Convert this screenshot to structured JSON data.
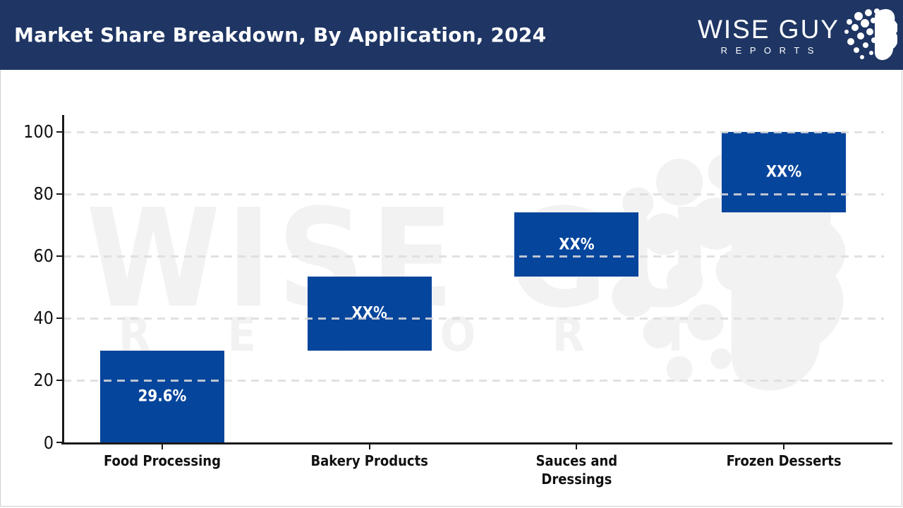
{
  "header": {
    "title": "Market Share Breakdown, By Application, 2024",
    "logo": {
      "brand": "WISE GUY",
      "tagline": "R E P O R T S"
    }
  },
  "watermark": {
    "brand": "WISE GUY",
    "tagline": "R E P O R T S"
  },
  "colors": {
    "header_bg": "#1f3664",
    "bar": "#05459c",
    "bar_label": "#ffffff",
    "axis": "#1a1a1a",
    "tick_label": "#111111",
    "grid": "#dcdcdc",
    "watermark": "#f2f2f2",
    "panel_border": "#cfcfcf"
  },
  "chart_data": {
    "type": "bar",
    "subtype": "floating-waterfall",
    "title": "Market Share Breakdown, By Application, 2024",
    "categories": [
      "Food Processing",
      "Bakery Products",
      "Sauces and Dressings",
      "Frozen Desserts"
    ],
    "series": [
      {
        "name": "Market share (%)",
        "segments": [
          {
            "category": "Food Processing",
            "start": 0,
            "end": 29.6,
            "label": "29.6%"
          },
          {
            "category": "Bakery Products",
            "start": 29.6,
            "end": 53.3,
            "label": "XX%"
          },
          {
            "category": "Sauces and Dressings",
            "start": 53.3,
            "end": 74.0,
            "label": "XX%"
          },
          {
            "category": "Frozen Desserts",
            "start": 74.0,
            "end": 100,
            "label": "XX%"
          }
        ]
      }
    ],
    "ylim": [
      0,
      100
    ],
    "yticks": [
      0,
      20,
      40,
      60,
      80,
      100
    ],
    "xlabel": "",
    "ylabel": "",
    "grid": "horizontal-dashed",
    "legend": null
  }
}
